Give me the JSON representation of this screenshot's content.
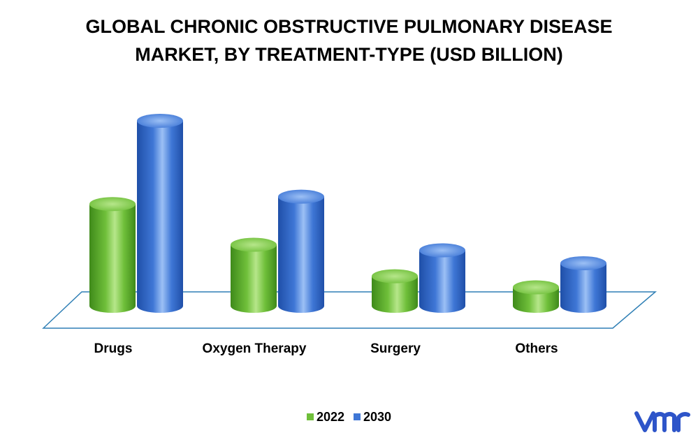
{
  "colors": {
    "series_2022": "#6fbf3a",
    "series_2030": "#3f77d6",
    "floor_stroke": "#2f7fb5",
    "logo": "#2e55c9"
  },
  "logo_icon": "vmr-logo",
  "chart_data": {
    "type": "bar",
    "title_lines": [
      "GLOBAL CHRONIC OBSTRUCTIVE PULMONARY DISEASE",
      "MARKET, BY TREATMENT-TYPE (USD BILLION)"
    ],
    "categories": [
      "Drugs",
      "Oxygen Therapy",
      "Surgery",
      "Others"
    ],
    "series": [
      {
        "name": "2022",
        "values": [
          5.5,
          3.3,
          1.6,
          1.0
        ]
      },
      {
        "name": "2030",
        "values": [
          10.0,
          5.9,
          3.0,
          2.3
        ]
      }
    ],
    "legend_position": "bottom",
    "grid": false
  }
}
